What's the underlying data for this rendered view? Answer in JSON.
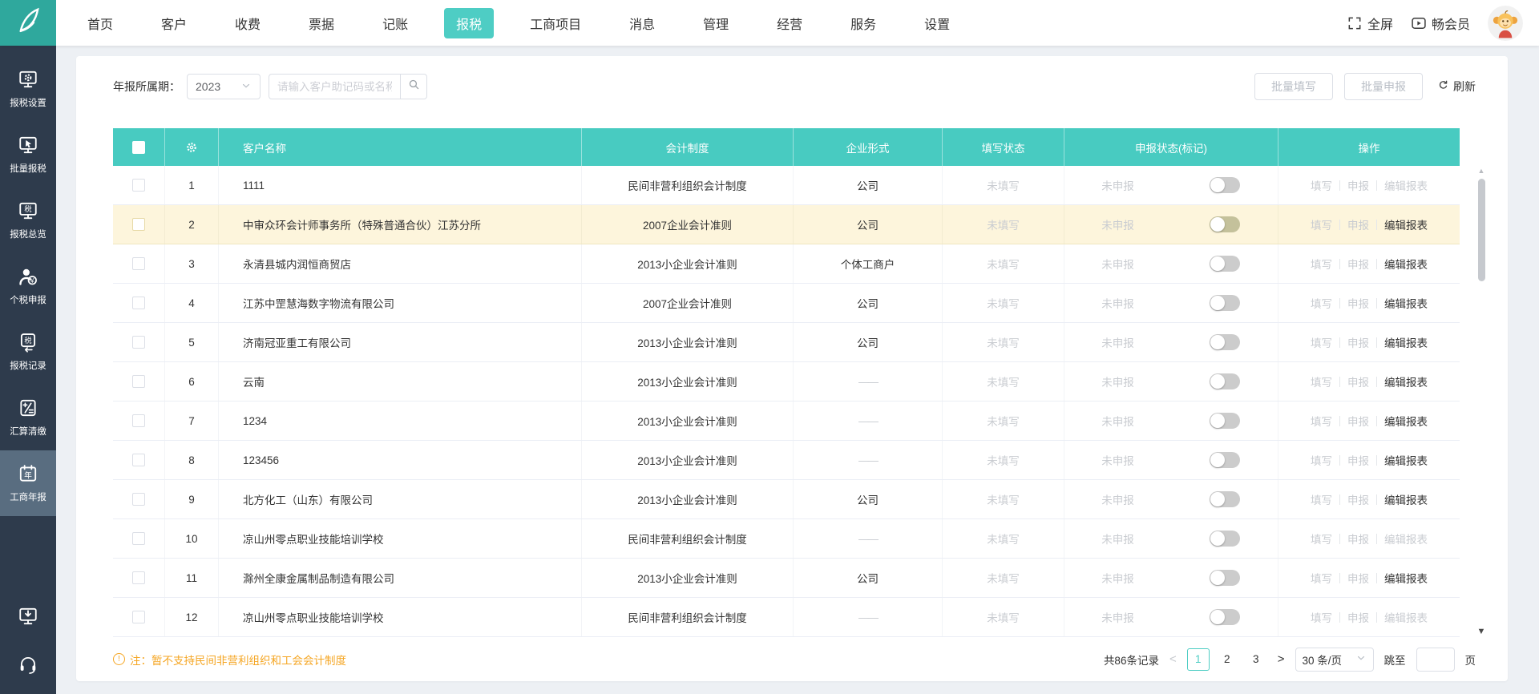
{
  "topbar": {
    "nav": [
      {
        "label": "首页",
        "active": false
      },
      {
        "label": "客户",
        "active": false
      },
      {
        "label": "收费",
        "active": false
      },
      {
        "label": "票据",
        "active": false
      },
      {
        "label": "记账",
        "active": false
      },
      {
        "label": "报税",
        "active": true
      },
      {
        "label": "工商项目",
        "active": false
      },
      {
        "label": "消息",
        "active": false
      },
      {
        "label": "管理",
        "active": false
      },
      {
        "label": "经营",
        "active": false
      },
      {
        "label": "服务",
        "active": false
      },
      {
        "label": "设置",
        "active": false
      }
    ],
    "fullscreen_label": "全屏",
    "member_label": "畅会员"
  },
  "sidebar": {
    "items": [
      {
        "label": "报税设置",
        "icon": "monitor-gear-icon",
        "active": false
      },
      {
        "label": "批量报税",
        "icon": "monitor-cursor-icon",
        "active": false
      },
      {
        "label": "报税总览",
        "icon": "monitor-tax-icon",
        "active": false
      },
      {
        "label": "个税申报",
        "icon": "person-yen-icon",
        "active": false
      },
      {
        "label": "报税记录",
        "icon": "tax-record-icon",
        "active": false
      },
      {
        "label": "汇算清缴",
        "icon": "calculator-icon",
        "active": false
      },
      {
        "label": "工商年报",
        "icon": "calendar-year-icon",
        "active": true
      }
    ],
    "bottom_icons": [
      "monitor-download-icon",
      "headset-icon"
    ]
  },
  "filters": {
    "period_label": "年报所属期：",
    "year": "2023",
    "search_placeholder": "请输入客户助记码或名称"
  },
  "actions": {
    "batch_fill": "批量填写",
    "batch_declare": "批量申报",
    "refresh": "刷新"
  },
  "table": {
    "headers": {
      "name": "客户名称",
      "system": "会计制度",
      "type": "企业形式",
      "fill": "填写状态",
      "declare": "申报状态(标记)",
      "ops": "操作"
    },
    "ops_labels": {
      "fill": "填写",
      "declare": "申报",
      "edit": "编辑报表"
    },
    "rows": [
      {
        "index": "1",
        "name": "1111",
        "accounting_system": "民间非营利组织会计制度",
        "enterprise_type": "公司",
        "fill_status": "未填写",
        "declare_status": "未申报",
        "toggle_on": false,
        "edit_enabled": false,
        "highlighted": false
      },
      {
        "index": "2",
        "name": "中审众环会计师事务所（特殊普通合伙）江苏分所",
        "accounting_system": "2007企业会计准则",
        "enterprise_type": "公司",
        "fill_status": "未填写",
        "declare_status": "未申报",
        "toggle_on": false,
        "edit_enabled": true,
        "highlighted": true
      },
      {
        "index": "3",
        "name": "永清县城内润恒商贸店",
        "accounting_system": "2013小企业会计准则",
        "enterprise_type": "个体工商户",
        "fill_status": "未填写",
        "declare_status": "未申报",
        "toggle_on": false,
        "edit_enabled": true,
        "highlighted": false
      },
      {
        "index": "4",
        "name": "江苏中罡慧海数字物流有限公司",
        "accounting_system": "2007企业会计准则",
        "enterprise_type": "公司",
        "fill_status": "未填写",
        "declare_status": "未申报",
        "toggle_on": false,
        "edit_enabled": true,
        "highlighted": false
      },
      {
        "index": "5",
        "name": "济南冠亚重工有限公司",
        "accounting_system": "2013小企业会计准则",
        "enterprise_type": "公司",
        "fill_status": "未填写",
        "declare_status": "未申报",
        "toggle_on": false,
        "edit_enabled": true,
        "highlighted": false
      },
      {
        "index": "6",
        "name": "云南",
        "accounting_system": "2013小企业会计准则",
        "enterprise_type": "——",
        "fill_status": "未填写",
        "declare_status": "未申报",
        "toggle_on": false,
        "edit_enabled": true,
        "highlighted": false
      },
      {
        "index": "7",
        "name": "1234",
        "accounting_system": "2013小企业会计准则",
        "enterprise_type": "——",
        "fill_status": "未填写",
        "declare_status": "未申报",
        "toggle_on": false,
        "edit_enabled": true,
        "highlighted": false
      },
      {
        "index": "8",
        "name": "123456",
        "accounting_system": "2013小企业会计准则",
        "enterprise_type": "——",
        "fill_status": "未填写",
        "declare_status": "未申报",
        "toggle_on": false,
        "edit_enabled": true,
        "highlighted": false
      },
      {
        "index": "9",
        "name": "北方化工（山东）有限公司",
        "accounting_system": "2013小企业会计准则",
        "enterprise_type": "公司",
        "fill_status": "未填写",
        "declare_status": "未申报",
        "toggle_on": false,
        "edit_enabled": true,
        "highlighted": false
      },
      {
        "index": "10",
        "name": "凉山州零点职业技能培训学校",
        "accounting_system": "民间非营利组织会计制度",
        "enterprise_type": "——",
        "fill_status": "未填写",
        "declare_status": "未申报",
        "toggle_on": false,
        "edit_enabled": false,
        "highlighted": false
      },
      {
        "index": "11",
        "name": "滁州全康金属制品制造有限公司",
        "accounting_system": "2013小企业会计准则",
        "enterprise_type": "公司",
        "fill_status": "未填写",
        "declare_status": "未申报",
        "toggle_on": false,
        "edit_enabled": true,
        "highlighted": false
      },
      {
        "index": "12",
        "name": "凉山州零点职业技能培训学校",
        "accounting_system": "民间非营利组织会计制度",
        "enterprise_type": "——",
        "fill_status": "未填写",
        "declare_status": "未申报",
        "toggle_on": false,
        "edit_enabled": false,
        "highlighted": false
      }
    ]
  },
  "footer": {
    "note": "注：暂不支持民间非营利组织和工会会计制度",
    "note_mark": "!",
    "total": "共86条记录",
    "pages": [
      "1",
      "2",
      "3"
    ],
    "current_page": "1",
    "prev_arrow": "<",
    "next_arrow": ">",
    "page_size": "30 条/页",
    "jump_label": "跳至",
    "page_unit": "页",
    "scroll_up_glyph": "▲",
    "scroll_down_glyph": "▼"
  },
  "colors": {
    "teal": "#4ecdc4",
    "header_teal": "#48cbc1",
    "logo_teal": "#2fa89d",
    "sidebar_bg": "#2e3b4c",
    "sidebar_active_bg": "#596d80",
    "highlight_row": "#fdf5dc",
    "note_orange": "#f5a623",
    "disabled_text": "#c9ccd1"
  }
}
